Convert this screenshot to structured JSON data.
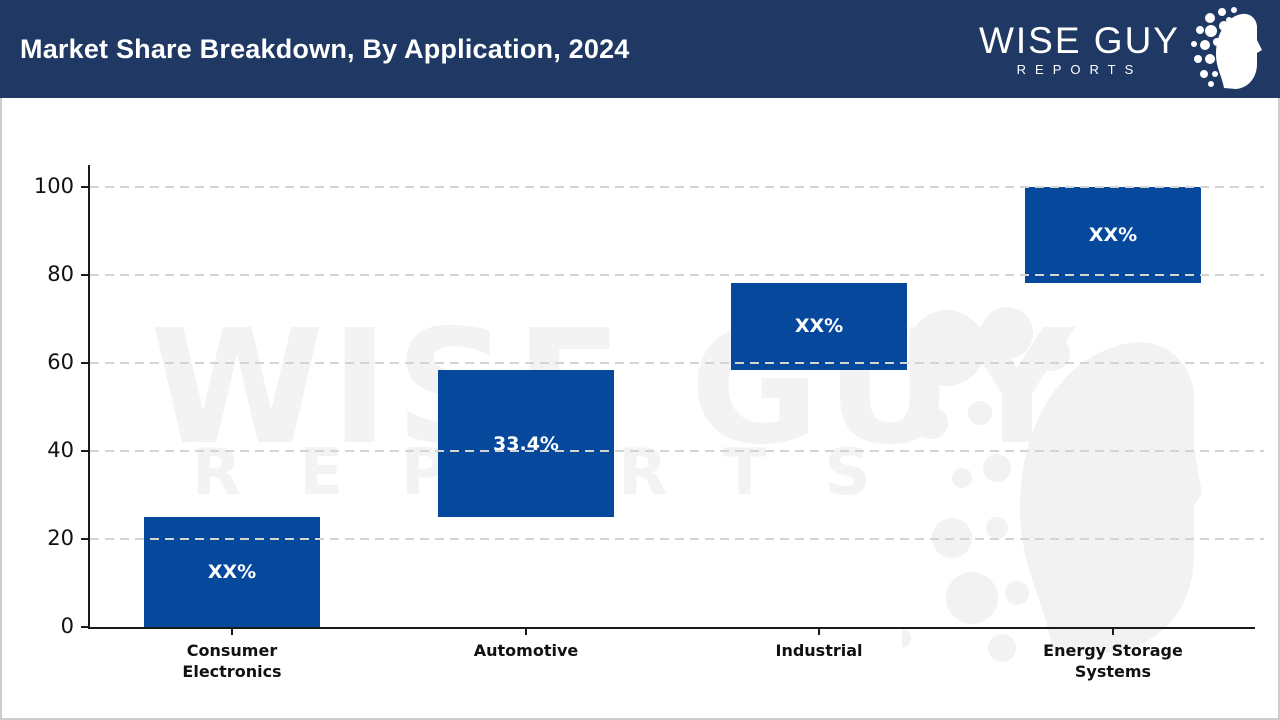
{
  "header": {
    "title": "Market Share Breakdown, By Application, 2024",
    "bg_color": "#1f3864",
    "logo": {
      "line1": "WISE GUY",
      "line2": "REPORTS"
    }
  },
  "watermark": {
    "line1": "WISE GUY",
    "line2": "REPORTS"
  },
  "chart_data": {
    "type": "bar",
    "subtype": "waterfall",
    "title": "Market Share Breakdown, By Application, 2024",
    "categories": [
      "Consumer Electronics",
      "Automotive",
      "Industrial",
      "Energy Storage Systems"
    ],
    "segments": [
      {
        "category": "Consumer Electronics",
        "label_lines": [
          "Consumer",
          "Electronics"
        ],
        "start": 0,
        "end": 25,
        "value_label": "XX%"
      },
      {
        "category": "Automotive",
        "label_lines": [
          "Automotive"
        ],
        "start": 25,
        "end": 58.4,
        "value_label": "33.4%"
      },
      {
        "category": "Industrial",
        "label_lines": [
          "Industrial"
        ],
        "start": 58.4,
        "end": 78.2,
        "value_label": "XX%"
      },
      {
        "category": "Energy Storage Systems",
        "label_lines": [
          "Energy Storage",
          "Systems"
        ],
        "start": 78.2,
        "end": 100,
        "value_label": "XX%"
      }
    ],
    "ylabel": "",
    "xlabel": "",
    "ylim": [
      0,
      100
    ],
    "yticks": [
      0,
      20,
      40,
      60,
      80,
      100
    ],
    "grid": "horizontal-dashed",
    "legend": "none",
    "bar_color": "#05489c",
    "axis_color": "#1a1a1a",
    "grid_color": "#d4d4d4"
  }
}
